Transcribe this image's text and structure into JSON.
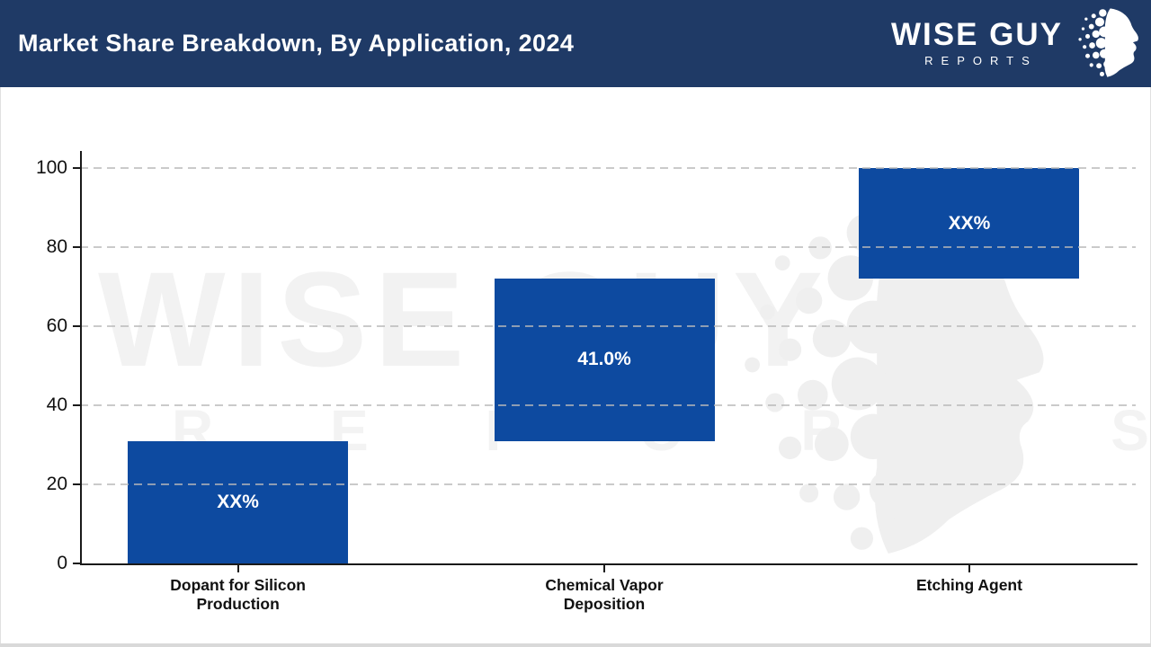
{
  "header": {
    "title": "Market Share Breakdown, By Application, 2024",
    "background_color": "#1f3a66",
    "brand": {
      "line1": "WISE GUY",
      "line2": "REPORTS"
    }
  },
  "watermark": {
    "line1": "WISE GUY",
    "line2": "R E P O R T S"
  },
  "chart_data": {
    "type": "bar",
    "variant": "floating-segment-bars",
    "title": "Market Share Breakdown, By Application, 2024",
    "categories": [
      "Dopant for Silicon Production",
      "Chemical Vapor Deposition",
      "Etching Agent"
    ],
    "segments": [
      {
        "category": "Dopant for Silicon Production",
        "start": 0,
        "end": 31,
        "value": 31,
        "value_label": "XX%"
      },
      {
        "category": "Chemical Vapor Deposition",
        "start": 31,
        "end": 72,
        "value": 41.0,
        "value_label": "41.0%"
      },
      {
        "category": "Etching Agent",
        "start": 72,
        "end": 100,
        "value": 28,
        "value_label": "XX%"
      }
    ],
    "xlabel": "",
    "ylabel": "",
    "ylim": [
      0,
      100
    ],
    "yticks": [
      0,
      20,
      40,
      60,
      80,
      100
    ],
    "grid": "horizontal-dashed",
    "legend": "none",
    "bar_color": "#0d4aa0",
    "value_label_color": "#ffffff",
    "axis_color": "#1a1a1a"
  }
}
